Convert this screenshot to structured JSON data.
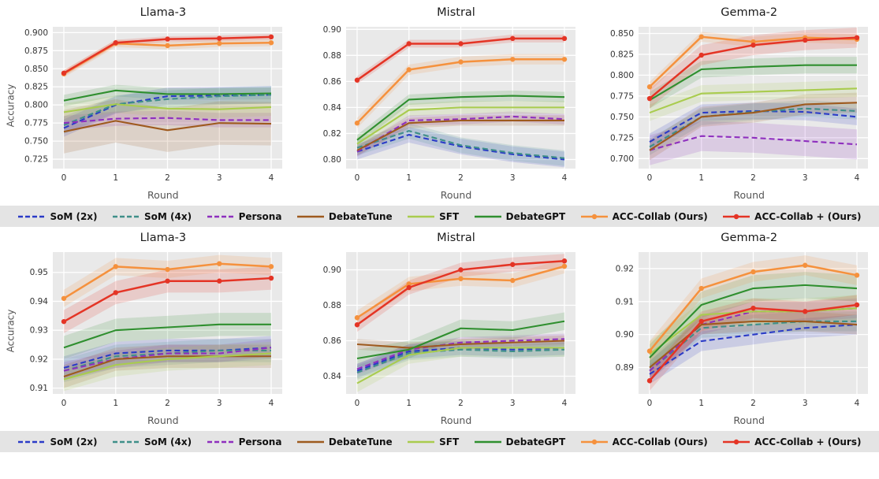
{
  "legend": [
    {
      "name": "SoM (2x)",
      "color": "#2b3bc7",
      "dashed": true,
      "marker": false
    },
    {
      "name": "SoM (4x)",
      "color": "#3f8f89",
      "dashed": true,
      "marker": false
    },
    {
      "name": "Persona",
      "color": "#8e2fbe",
      "dashed": true,
      "marker": false
    },
    {
      "name": "DebateTune",
      "color": "#9e5a1e",
      "dashed": false,
      "marker": false
    },
    {
      "name": "SFT",
      "color": "#a9cc4e",
      "dashed": false,
      "marker": false
    },
    {
      "name": "DebateGPT",
      "color": "#2f8f2f",
      "dashed": false,
      "marker": false
    },
    {
      "name": "ACC-Collab (Ours)",
      "color": "#f5913d",
      "dashed": false,
      "marker": true
    },
    {
      "name": "ACC-Collab + (Ours)",
      "color": "#e43425",
      "dashed": false,
      "marker": true
    }
  ],
  "colors": {
    "plot_background": "#e9e9e9",
    "gridline": "#ffffff",
    "legend_background": "#e4e4e4"
  },
  "chart_data": [
    {
      "type": "line",
      "title": "Llama-3",
      "xlabel": "Round",
      "ylabel": "Accuracy",
      "x": [
        0,
        1,
        2,
        3,
        4
      ],
      "ylim": [
        0.712,
        0.908
      ],
      "yticks": [
        0.725,
        0.75,
        0.775,
        0.8,
        0.825,
        0.85,
        0.875,
        0.9
      ],
      "ytick_labels": [
        "0.725",
        "0.750",
        "0.775",
        "0.800",
        "0.825",
        "0.850",
        "0.875",
        "0.900"
      ],
      "series": [
        {
          "name": "SoM (2x)",
          "values": [
            0.768,
            0.8,
            0.812,
            0.813,
            0.814
          ],
          "band": 0.012
        },
        {
          "name": "SoM (4x)",
          "values": [
            0.772,
            0.801,
            0.808,
            0.812,
            0.814
          ],
          "band": 0.012
        },
        {
          "name": "Persona",
          "values": [
            0.775,
            0.781,
            0.782,
            0.779,
            0.779
          ],
          "band": 0.01
        },
        {
          "name": "DebateTune",
          "values": [
            0.763,
            0.778,
            0.765,
            0.775,
            0.774
          ],
          "band": 0.03
        },
        {
          "name": "SFT",
          "values": [
            0.79,
            0.801,
            0.795,
            0.794,
            0.797
          ],
          "band": 0.012
        },
        {
          "name": "DebateGPT",
          "values": [
            0.806,
            0.82,
            0.815,
            0.815,
            0.816
          ],
          "band": 0.008
        },
        {
          "name": "ACC-Collab (Ours)",
          "values": [
            0.843,
            0.885,
            0.882,
            0.885,
            0.886
          ],
          "band": 0.005
        },
        {
          "name": "ACC-Collab + (Ours)",
          "values": [
            0.844,
            0.886,
            0.891,
            0.892,
            0.894
          ],
          "band": 0.004
        }
      ]
    },
    {
      "type": "line",
      "title": "Mistral",
      "xlabel": "Round",
      "ylabel": "",
      "x": [
        0,
        1,
        2,
        3,
        4
      ],
      "ylim": [
        0.793,
        0.902
      ],
      "yticks": [
        0.8,
        0.82,
        0.84,
        0.86,
        0.88,
        0.9
      ],
      "ytick_labels": [
        "0.80",
        "0.82",
        "0.84",
        "0.86",
        "0.88",
        "0.90"
      ],
      "series": [
        {
          "name": "SoM (2x)",
          "values": [
            0.806,
            0.819,
            0.81,
            0.804,
            0.8
          ],
          "band": 0.006
        },
        {
          "name": "SoM (4x)",
          "values": [
            0.809,
            0.822,
            0.811,
            0.805,
            0.801
          ],
          "band": 0.006
        },
        {
          "name": "Persona",
          "values": [
            0.806,
            0.83,
            0.831,
            0.833,
            0.831
          ],
          "band": 0.004
        },
        {
          "name": "DebateTune",
          "values": [
            0.807,
            0.828,
            0.83,
            0.83,
            0.83
          ],
          "band": 0.004
        },
        {
          "name": "SFT",
          "values": [
            0.812,
            0.838,
            0.84,
            0.84,
            0.84
          ],
          "band": 0.005
        },
        {
          "name": "DebateGPT",
          "values": [
            0.815,
            0.846,
            0.848,
            0.849,
            0.848
          ],
          "band": 0.004
        },
        {
          "name": "ACC-Collab (Ours)",
          "values": [
            0.828,
            0.869,
            0.875,
            0.877,
            0.877
          ],
          "band": 0.004
        },
        {
          "name": "ACC-Collab + (Ours)",
          "values": [
            0.861,
            0.889,
            0.889,
            0.893,
            0.893
          ],
          "band": 0.003
        }
      ]
    },
    {
      "type": "line",
      "title": "Gemma-2",
      "xlabel": "Round",
      "ylabel": "",
      "x": [
        0,
        1,
        2,
        3,
        4
      ],
      "ylim": [
        0.688,
        0.858
      ],
      "yticks": [
        0.7,
        0.725,
        0.75,
        0.775,
        0.8,
        0.825,
        0.85
      ],
      "ytick_labels": [
        "0.700",
        "0.725",
        "0.750",
        "0.775",
        "0.800",
        "0.825",
        "0.850"
      ],
      "series": [
        {
          "name": "SoM (2x)",
          "values": [
            0.72,
            0.755,
            0.757,
            0.756,
            0.75
          ],
          "band": 0.01
        },
        {
          "name": "SoM (4x)",
          "values": [
            0.714,
            0.75,
            0.756,
            0.76,
            0.757
          ],
          "band": 0.01
        },
        {
          "name": "Persona",
          "values": [
            0.71,
            0.727,
            0.725,
            0.721,
            0.717
          ],
          "band": 0.018
        },
        {
          "name": "DebateTune",
          "values": [
            0.71,
            0.75,
            0.755,
            0.765,
            0.767
          ],
          "band": 0.012
        },
        {
          "name": "SFT",
          "values": [
            0.755,
            0.778,
            0.78,
            0.782,
            0.784
          ],
          "band": 0.01
        },
        {
          "name": "DebateGPT",
          "values": [
            0.77,
            0.807,
            0.81,
            0.812,
            0.812
          ],
          "band": 0.01
        },
        {
          "name": "ACC-Collab (Ours)",
          "values": [
            0.786,
            0.846,
            0.84,
            0.845,
            0.843
          ],
          "band": 0.006
        },
        {
          "name": "ACC-Collab + (Ours)",
          "values": [
            0.772,
            0.824,
            0.836,
            0.842,
            0.845
          ],
          "band": 0.012
        }
      ]
    },
    {
      "type": "line",
      "title": "Llama-3",
      "xlabel": "Round",
      "ylabel": "Accuracy",
      "x": [
        0,
        1,
        2,
        3,
        4
      ],
      "ylim": [
        0.908,
        0.957
      ],
      "yticks": [
        0.91,
        0.92,
        0.93,
        0.94,
        0.95
      ],
      "ytick_labels": [
        "0.91",
        "0.92",
        "0.93",
        "0.94",
        "0.95"
      ],
      "series": [
        {
          "name": "SoM (2x)",
          "values": [
            0.917,
            0.922,
            0.923,
            0.923,
            0.924
          ],
          "band": 0.004
        },
        {
          "name": "SoM (4x)",
          "values": [
            0.916,
            0.921,
            0.922,
            0.923,
            0.923
          ],
          "band": 0.004
        },
        {
          "name": "Persona",
          "values": [
            0.916,
            0.92,
            0.922,
            0.922,
            0.924
          ],
          "band": 0.003
        },
        {
          "name": "DebateTune",
          "values": [
            0.914,
            0.92,
            0.921,
            0.921,
            0.921
          ],
          "band": 0.004
        },
        {
          "name": "SFT",
          "values": [
            0.913,
            0.918,
            0.92,
            0.921,
            0.922
          ],
          "band": 0.004
        },
        {
          "name": "DebateGPT",
          "values": [
            0.924,
            0.93,
            0.931,
            0.932,
            0.932
          ],
          "band": 0.004
        },
        {
          "name": "ACC-Collab (Ours)",
          "values": [
            0.941,
            0.952,
            0.951,
            0.953,
            0.952
          ],
          "band": 0.003
        },
        {
          "name": "ACC-Collab + (Ours)",
          "values": [
            0.933,
            0.943,
            0.947,
            0.947,
            0.948
          ],
          "band": 0.004
        }
      ]
    },
    {
      "type": "line",
      "title": "Mistral",
      "xlabel": "Round",
      "ylabel": "",
      "x": [
        0,
        1,
        2,
        3,
        4
      ],
      "ylim": [
        0.83,
        0.91
      ],
      "yticks": [
        0.84,
        0.86,
        0.88,
        0.9
      ],
      "ytick_labels": [
        "0.84",
        "0.86",
        "0.88",
        "0.90"
      ],
      "series": [
        {
          "name": "SoM (2x)",
          "values": [
            0.843,
            0.854,
            0.856,
            0.855,
            0.856
          ],
          "band": 0.004
        },
        {
          "name": "SoM (4x)",
          "values": [
            0.842,
            0.853,
            0.855,
            0.854,
            0.855
          ],
          "band": 0.004
        },
        {
          "name": "Persona",
          "values": [
            0.844,
            0.855,
            0.859,
            0.86,
            0.861
          ],
          "band": 0.003
        },
        {
          "name": "DebateTune",
          "values": [
            0.858,
            0.856,
            0.858,
            0.859,
            0.86
          ],
          "band": 0.003
        },
        {
          "name": "SFT",
          "values": [
            0.836,
            0.852,
            0.856,
            0.856,
            0.856
          ],
          "band": 0.005
        },
        {
          "name": "DebateGPT",
          "values": [
            0.85,
            0.855,
            0.867,
            0.866,
            0.871
          ],
          "band": 0.005
        },
        {
          "name": "ACC-Collab (Ours)",
          "values": [
            0.873,
            0.892,
            0.895,
            0.894,
            0.902
          ],
          "band": 0.004
        },
        {
          "name": "ACC-Collab + (Ours)",
          "values": [
            0.869,
            0.89,
            0.9,
            0.903,
            0.905
          ],
          "band": 0.004
        }
      ]
    },
    {
      "type": "line",
      "title": "Gemma-2",
      "xlabel": "Round",
      "ylabel": "",
      "x": [
        0,
        1,
        2,
        3,
        4
      ],
      "ylim": [
        0.882,
        0.925
      ],
      "yticks": [
        0.89,
        0.9,
        0.91,
        0.92
      ],
      "ytick_labels": [
        "0.89",
        "0.90",
        "0.91",
        "0.92"
      ],
      "series": [
        {
          "name": "SoM (2x)",
          "values": [
            0.888,
            0.898,
            0.9,
            0.902,
            0.903
          ],
          "band": 0.003
        },
        {
          "name": "SoM (4x)",
          "values": [
            0.889,
            0.902,
            0.903,
            0.904,
            0.904
          ],
          "band": 0.003
        },
        {
          "name": "Persona",
          "values": [
            0.889,
            0.903,
            0.907,
            0.907,
            0.908
          ],
          "band": 0.003
        },
        {
          "name": "DebateTune",
          "values": [
            0.89,
            0.903,
            0.904,
            0.904,
            0.903
          ],
          "band": 0.003
        },
        {
          "name": "SFT",
          "values": [
            0.894,
            0.906,
            0.907,
            0.907,
            0.908
          ],
          "band": 0.004
        },
        {
          "name": "DebateGPT",
          "values": [
            0.893,
            0.909,
            0.914,
            0.915,
            0.914
          ],
          "band": 0.004
        },
        {
          "name": "ACC-Collab (Ours)",
          "values": [
            0.895,
            0.914,
            0.919,
            0.921,
            0.918
          ],
          "band": 0.003
        },
        {
          "name": "ACC-Collab + (Ours)",
          "values": [
            0.886,
            0.904,
            0.908,
            0.907,
            0.909
          ],
          "band": 0.003
        }
      ]
    }
  ]
}
